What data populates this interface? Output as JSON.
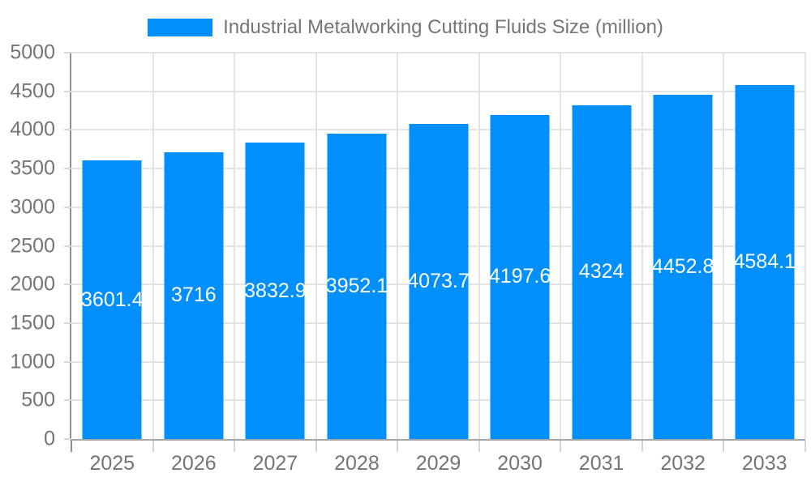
{
  "legend": {
    "series_label": "Industrial Metalworking Cutting Fluids Size (million)"
  },
  "colors": {
    "bar": "#008FFB",
    "value_label_text": "#ffffff",
    "axis_text": "#757575",
    "gridline": "#e3e3e3",
    "axis_line": "#8f8f8f",
    "tick": "#d4d4d4"
  },
  "chart_data": {
    "type": "bar",
    "title": "Industrial Metalworking Cutting Fluids Size (million)",
    "categories": [
      "2025",
      "2026",
      "2027",
      "2028",
      "2029",
      "2030",
      "2031",
      "2032",
      "2033"
    ],
    "values": [
      3601.4,
      3716,
      3832.9,
      3952.1,
      4073.7,
      4197.6,
      4324,
      4452.8,
      4584.1
    ],
    "series": [
      {
        "name": "Industrial Metalworking Cutting Fluids Size (million)",
        "values": [
          3601.4,
          3716,
          3832.9,
          3952.1,
          4073.7,
          4197.6,
          4324,
          4452.8,
          4584.1
        ]
      }
    ],
    "xlabel": "",
    "ylabel": "",
    "ylim": [
      0,
      5000
    ],
    "y_ticks": [
      "0",
      "500",
      "1000",
      "1500",
      "2000",
      "2500",
      "3000",
      "3500",
      "4000",
      "4500",
      "5000"
    ],
    "grid": "on",
    "legend_position": "top",
    "bar_color": "#008FFB",
    "value_labels_shown": true,
    "value_label_position": "center"
  }
}
